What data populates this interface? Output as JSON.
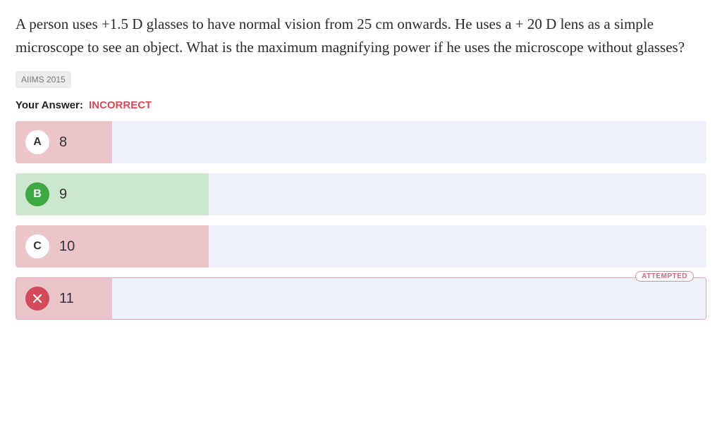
{
  "question": "A person uses +1.5 D glasses to have normal vision from 25 cm onwards. He uses a + 20 D lens as a simple microscope to see an object. What is the maximum magnifying power if he uses the microscope without glasses?",
  "exam_tag": "AIIMS 2015",
  "your_answer_label": "Your Answer:",
  "your_answer_status": "INCORRECT",
  "colors": {
    "bar_bg": "#eef1f8",
    "pink_fill": "#ebc5ca",
    "green_fill": "#cde7cf",
    "status_red": "#d34a5a",
    "letter_green": "#3fa843",
    "letter_red": "#d34a5a",
    "attempted_border": "#e6a6b0",
    "attempted_text": "#c76d7b"
  },
  "options": [
    {
      "letter": "A",
      "text": "8",
      "fill_color": "#ebc5ca",
      "fill_width_pct": 14,
      "letter_style": "white",
      "attempted": false,
      "show_x": false
    },
    {
      "letter": "B",
      "text": "9",
      "fill_color": "#cde7cf",
      "fill_width_pct": 28,
      "letter_style": "green",
      "attempted": false,
      "show_x": false
    },
    {
      "letter": "C",
      "text": "10",
      "fill_color": "#ebc5ca",
      "fill_width_pct": 28,
      "letter_style": "white",
      "attempted": false,
      "show_x": false
    },
    {
      "letter": "×",
      "text": "11",
      "fill_color": "#ebc5ca",
      "fill_width_pct": 14,
      "letter_style": "red",
      "attempted": true,
      "show_x": true
    }
  ],
  "attempted_label": "ATTEMPTED"
}
